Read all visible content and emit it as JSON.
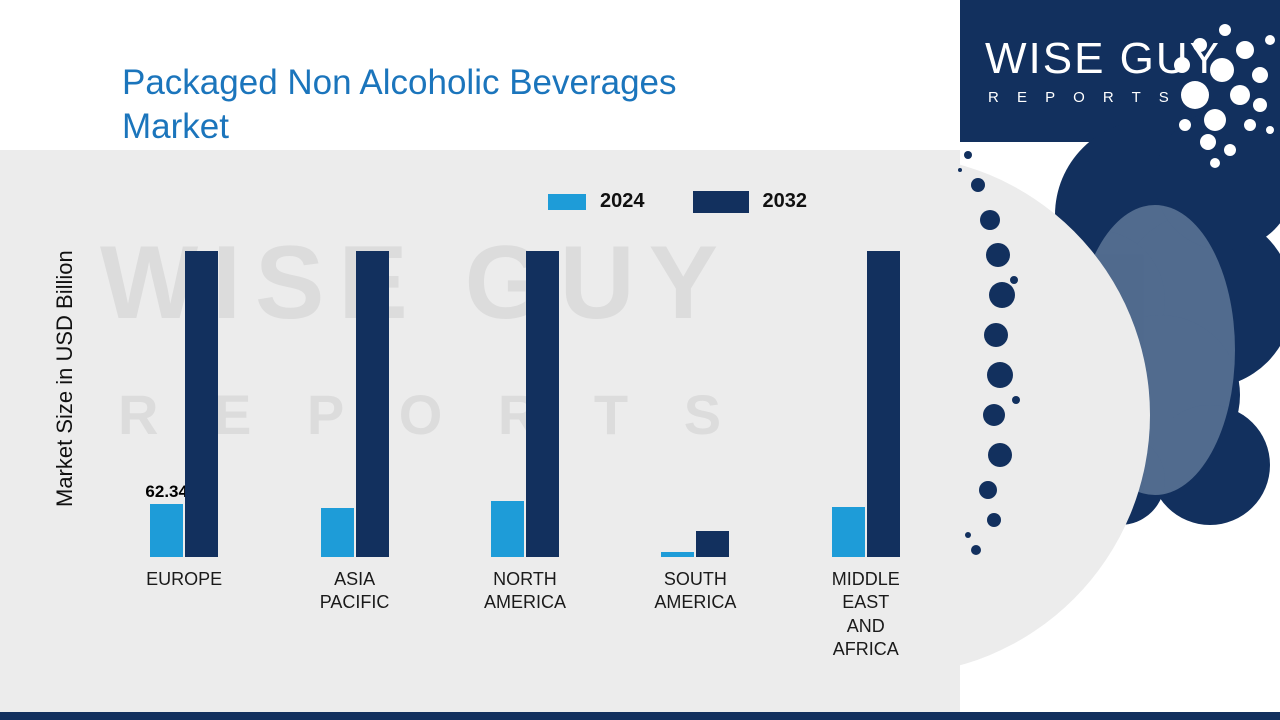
{
  "header": {
    "title": "Packaged Non Alcoholic Beverages Market"
  },
  "logo": {
    "line1": "WISE GUY",
    "line2": "R E P O R T S"
  },
  "watermark": {
    "line1": "WISE GUY",
    "line2": "R E P O R T S"
  },
  "colors": {
    "title_blue": "#1b75bc",
    "series_2024": "#1e9cd8",
    "series_2032": "#12305e",
    "panel_gray": "#ececec",
    "watermark_gray": "#dcdcdc"
  },
  "chart_data": {
    "type": "bar",
    "title": "Packaged Non Alcoholic Beverages Market",
    "xlabel": "",
    "ylabel": "Market Size in USD Billion",
    "categories": [
      "EUROPE",
      "ASIA PACIFIC",
      "NORTH AMERICA",
      "SOUTH AMERICA",
      "MIDDLE EAST AND AFRICA"
    ],
    "category_labels": [
      "EUROPE",
      "ASIA\nPACIFIC",
      "NORTH\nAMERICA",
      "SOUTH\nAMERICA",
      "MIDDLE\nEAST\nAND\nAFRICA"
    ],
    "series": [
      {
        "name": "2024",
        "color": "#1e9cd8",
        "values": [
          62.34,
          58,
          66,
          6,
          59
        ]
      },
      {
        "name": "2032",
        "color": "#12305e",
        "values": [
          360,
          360,
          360,
          31,
          360
        ]
      }
    ],
    "annotations": [
      {
        "category": "EUROPE",
        "series": "2024",
        "label": "62.34"
      }
    ],
    "ylim": [
      0,
      360
    ],
    "grid": false,
    "legend_position": "top"
  }
}
